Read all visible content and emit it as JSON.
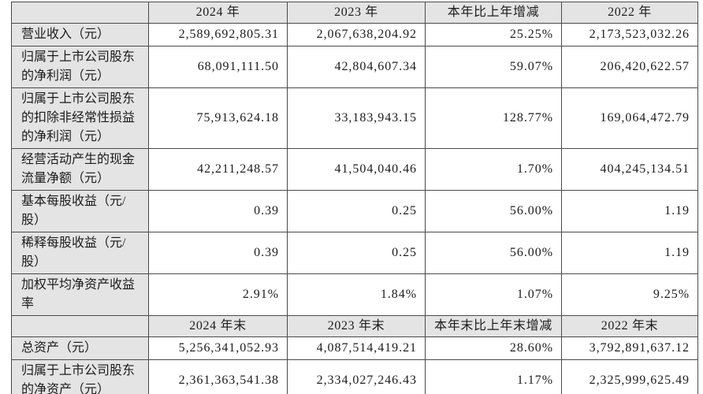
{
  "colors": {
    "header_bg": "#e4e4e4",
    "label_bg": "#e4e4e4",
    "cell_bg": "#ffffff",
    "border": "#4a4a4a",
    "text": "#1c1c1c"
  },
  "table": {
    "period_header": {
      "blank": "",
      "cols": [
        "2024 年",
        "2023 年",
        "本年比上年增减",
        "2022 年"
      ]
    },
    "period_rows": [
      {
        "label": "营业收入（元）",
        "values": [
          "2,589,692,805.31",
          "2,067,638,204.92",
          "25.25%",
          "2,173,523,032.26"
        ]
      },
      {
        "label": "归属于上市公司股东\n的净利润（元）",
        "values": [
          "68,091,111.50",
          "42,804,607.34",
          "59.07%",
          "206,420,622.57"
        ]
      },
      {
        "label": "归属于上市公司股东\n的扣除非经常性损益\n的净利润（元）",
        "values": [
          "75,913,624.18",
          "33,183,943.15",
          "128.77%",
          "169,064,472.79"
        ]
      },
      {
        "label": "经营活动产生的现金\n流量净额（元）",
        "values": [
          "42,211,248.57",
          "41,504,040.46",
          "1.70%",
          "404,245,134.51"
        ]
      },
      {
        "label": "基本每股收益（元/\n股）",
        "values": [
          "0.39",
          "0.25",
          "56.00%",
          "1.19"
        ]
      },
      {
        "label": "稀释每股收益（元/\n股）",
        "values": [
          "0.39",
          "0.25",
          "56.00%",
          "1.19"
        ]
      },
      {
        "label": "加权平均净资产收益\n率",
        "values": [
          "2.91%",
          "1.84%",
          "1.07%",
          "9.25%"
        ]
      }
    ],
    "snapshot_header": {
      "blank": "",
      "cols": [
        "2024 年末",
        "2023 年末",
        "本年末比上年末增减",
        "2022 年末"
      ]
    },
    "snapshot_rows": [
      {
        "label": "总资产（元）",
        "values": [
          "5,256,341,052.93",
          "4,087,514,419.21",
          "28.60%",
          "3,792,891,637.12"
        ]
      },
      {
        "label": "归属于上市公司股东\n的净资产（元）",
        "values": [
          "2,361,363,541.38",
          "2,334,027,246.43",
          "1.17%",
          "2,325,999,625.49"
        ]
      }
    ]
  }
}
